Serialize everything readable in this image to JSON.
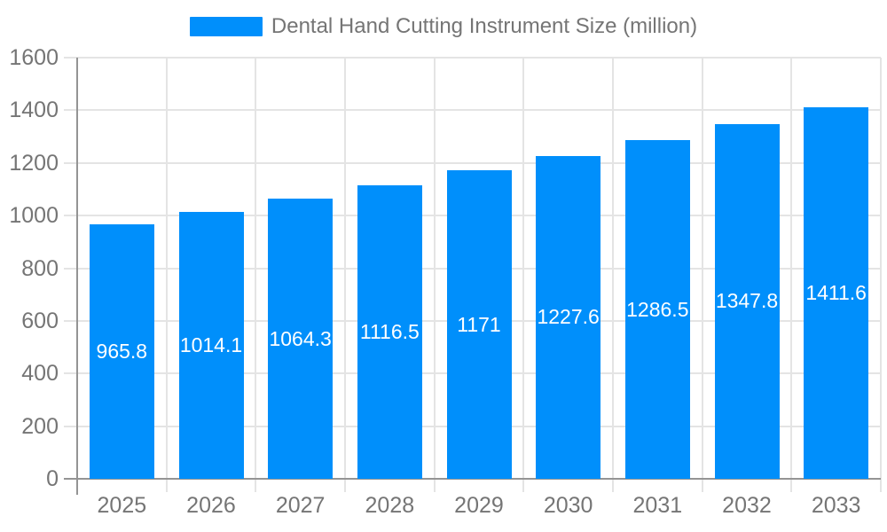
{
  "legend": {
    "label": "Dental Hand Cutting Instrument Size (million)"
  },
  "chart_data": {
    "type": "bar",
    "title": "Dental Hand Cutting Instrument Size (million)",
    "categories": [
      "2025",
      "2026",
      "2027",
      "2028",
      "2029",
      "2030",
      "2031",
      "2032",
      "2033"
    ],
    "series": [
      {
        "name": "Dental Hand Cutting Instrument Size (million)",
        "values": [
          965.8,
          1014.1,
          1064.3,
          1116.5,
          1171,
          1227.6,
          1286.5,
          1347.8,
          1411.6
        ],
        "value_labels": [
          "965.8",
          "1014.1",
          "1064.3",
          "1116.5",
          "1171",
          "1227.6",
          "1286.5",
          "1347.8",
          "1411.6"
        ]
      }
    ],
    "xlabel": "",
    "ylabel": "",
    "ylim": [
      0,
      1600
    ],
    "yticks": [
      0,
      200,
      400,
      600,
      800,
      1000,
      1200,
      1400,
      1600
    ],
    "grid": true,
    "legend_position": "top",
    "value_label_position": "inside-center",
    "colors": {
      "bar": "#008ffb",
      "grid": "#e4e4e4",
      "axis": "#949494",
      "tick_text": "#757575",
      "legend_text": "#757575",
      "value_label_text": "#ffffff",
      "background": "#ffffff"
    }
  }
}
